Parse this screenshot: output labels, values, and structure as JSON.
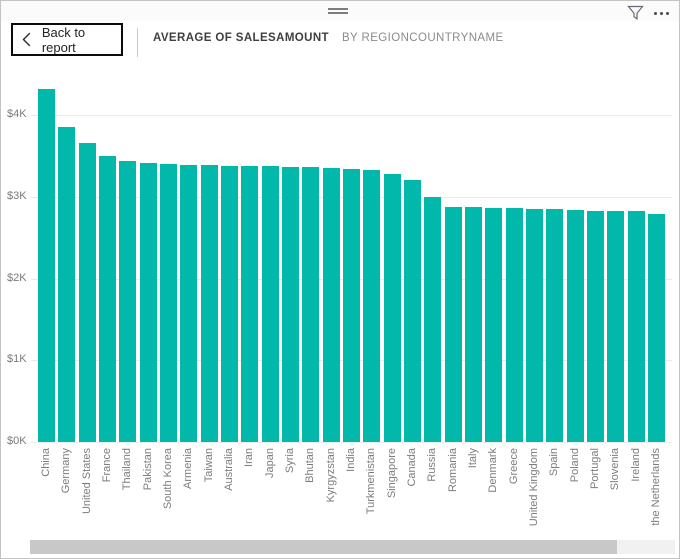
{
  "topbar": {
    "drag_handle_icon": "drag-handle",
    "filter_icon": "filter-funnel",
    "more_options_icon": "ellipsis"
  },
  "toolbar": {
    "back_label": "Back to report",
    "title": "AVERAGE OF SALESAMOUNT",
    "subtitle": "BY REGIONCOUNTRYNAME"
  },
  "chart_data": {
    "type": "bar",
    "title": "Average of SalesAmount by RegionCountryName",
    "categories": [
      "China",
      "Germany",
      "United States",
      "France",
      "Thailand",
      "Pakistan",
      "South Korea",
      "Armenia",
      "Taiwan",
      "Australia",
      "Iran",
      "Japan",
      "Syria",
      "Bhutan",
      "Kyrgyzstan",
      "India",
      "Turkmenistan",
      "Singapore",
      "Canada",
      "Russia",
      "Romania",
      "Italy",
      "Denmark",
      "Greece",
      "United Kingdom",
      "Spain",
      "Poland",
      "Portugal",
      "Slovenia",
      "Ireland",
      "the Netherlands"
    ],
    "values": [
      4320,
      3850,
      3660,
      3500,
      3440,
      3410,
      3400,
      3390,
      3390,
      3380,
      3380,
      3380,
      3370,
      3370,
      3350,
      3340,
      3330,
      3280,
      3210,
      3000,
      2880,
      2870,
      2860,
      2860,
      2850,
      2850,
      2840,
      2830,
      2830,
      2820,
      2790
    ],
    "value_unit": "USD",
    "xlabel": "",
    "ylabel": "",
    "y_ticks": {
      "labels": [
        "$0K",
        "$1K",
        "$2K",
        "$3K",
        "$4K"
      ],
      "values": [
        0,
        1000,
        2000,
        3000,
        4000
      ]
    },
    "ylim": [
      0,
      4460
    ],
    "grid": true,
    "legend": false,
    "bar_color": "#01B8AA"
  },
  "colors": {
    "bar": "#01B8AA",
    "grid_line": "#e9e9e9",
    "axis_text": "#7b7b7b",
    "title_text": "#3f3f3f",
    "subtitle_text": "#8c8c8c",
    "window_border": "#c3c3c3",
    "scrollbar_thumb": "#c8c8c8",
    "scrollbar_track": "#f1f1f1"
  },
  "scrollbar": {
    "orientation": "horizontal"
  }
}
